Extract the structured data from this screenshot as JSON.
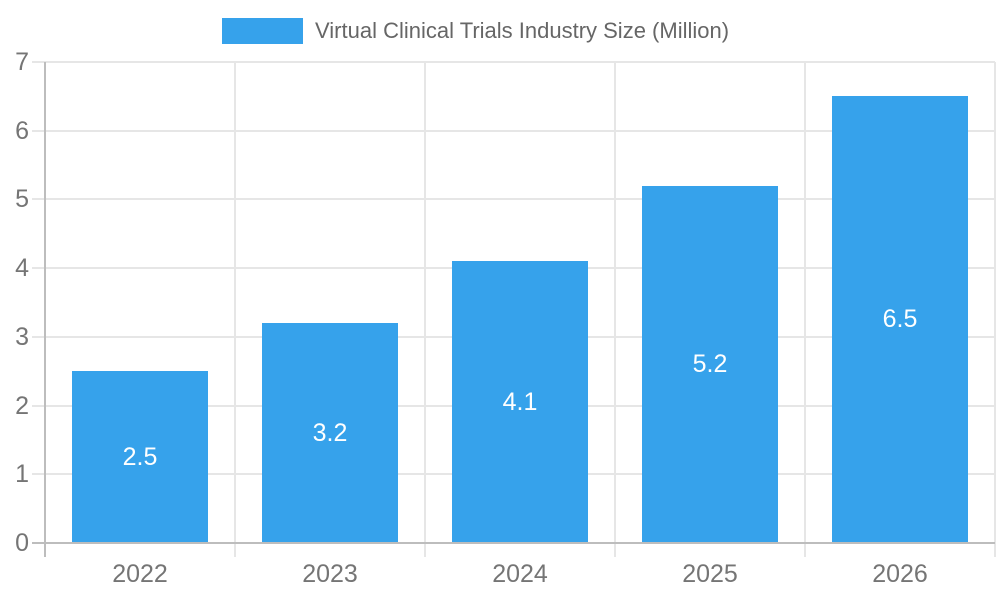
{
  "chart_data": {
    "type": "bar",
    "title": "Virtual Clinical Trials Industry Size (Million)",
    "legend": {
      "position": "top",
      "entries": [
        {
          "label": "Virtual Clinical Trials Industry Size (Million)",
          "swatch_color": "#36a2eb"
        }
      ]
    },
    "categories": [
      "2022",
      "2023",
      "2024",
      "2025",
      "2026"
    ],
    "series": [
      {
        "name": "Virtual Clinical Trials Industry Size (Million)",
        "values": [
          2.5,
          3.2,
          4.1,
          5.2,
          6.5
        ]
      }
    ],
    "value_labels": [
      "2.5",
      "3.2",
      "4.1",
      "5.2",
      "6.5"
    ],
    "value_label_position": "inside-center",
    "xlabel": "",
    "ylabel": "",
    "ylim": [
      0,
      7
    ],
    "yticks": [
      0,
      1,
      2,
      3,
      4,
      5,
      6,
      7
    ],
    "grid": true,
    "colors": {
      "bar": "#36a2eb",
      "grid": "#e6e6e6",
      "axis": "#bdbdbd",
      "axis_text": "#757575",
      "legend_text": "#666666",
      "value_label_text": "#ffffff",
      "background": "#ffffff"
    }
  }
}
